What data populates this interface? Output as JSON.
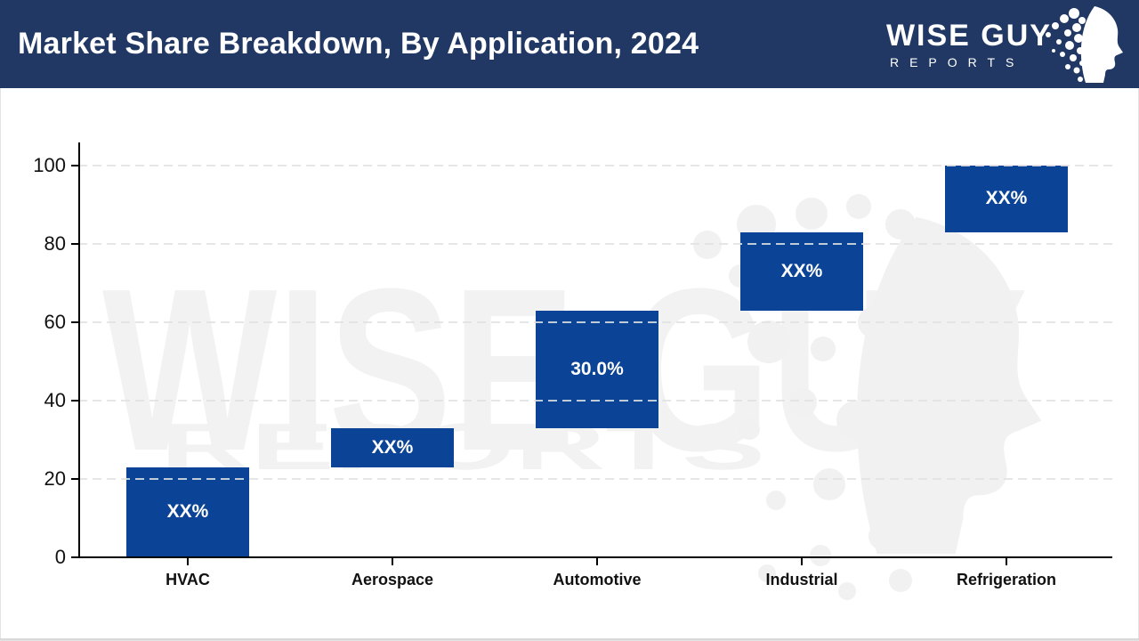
{
  "header": {
    "title": "Market Share Breakdown, By Application, 2024",
    "logo": {
      "line1": "WISE GUY",
      "line2": "REPORTS"
    }
  },
  "watermark": {
    "line1": "WISE GUY",
    "line2": "REPORTS"
  },
  "chart_data": {
    "type": "bar",
    "subtype": "floating-waterfall",
    "title": "Market Share Breakdown, By Application, 2024",
    "categories": [
      "HVAC",
      "Aerospace",
      "Automotive",
      "Industrial",
      "Refrigeration"
    ],
    "series": [
      {
        "name": "Market Share",
        "segments": [
          {
            "category": "HVAC",
            "start": 0,
            "end": 23,
            "label": "XX%"
          },
          {
            "category": "Aerospace",
            "start": 23,
            "end": 33,
            "label": "XX%"
          },
          {
            "category": "Automotive",
            "start": 33,
            "end": 63,
            "label": "30.0%"
          },
          {
            "category": "Industrial",
            "start": 63,
            "end": 83,
            "label": "XX%"
          },
          {
            "category": "Refrigeration",
            "start": 83,
            "end": 100,
            "label": "XX%"
          }
        ]
      }
    ],
    "xlabel": "",
    "ylabel": "",
    "yticks": [
      0,
      20,
      40,
      60,
      80,
      100
    ],
    "ylim": [
      0,
      106
    ],
    "grid": "horizontal-dashed",
    "legend": "none",
    "bar_color": "#0b4397",
    "bar_label_color": "#ffffff",
    "header_color": "#213864",
    "axis_color": "#000000",
    "gridline_color": "#e2e2e2",
    "watermark_color": "#f2f2f2"
  }
}
